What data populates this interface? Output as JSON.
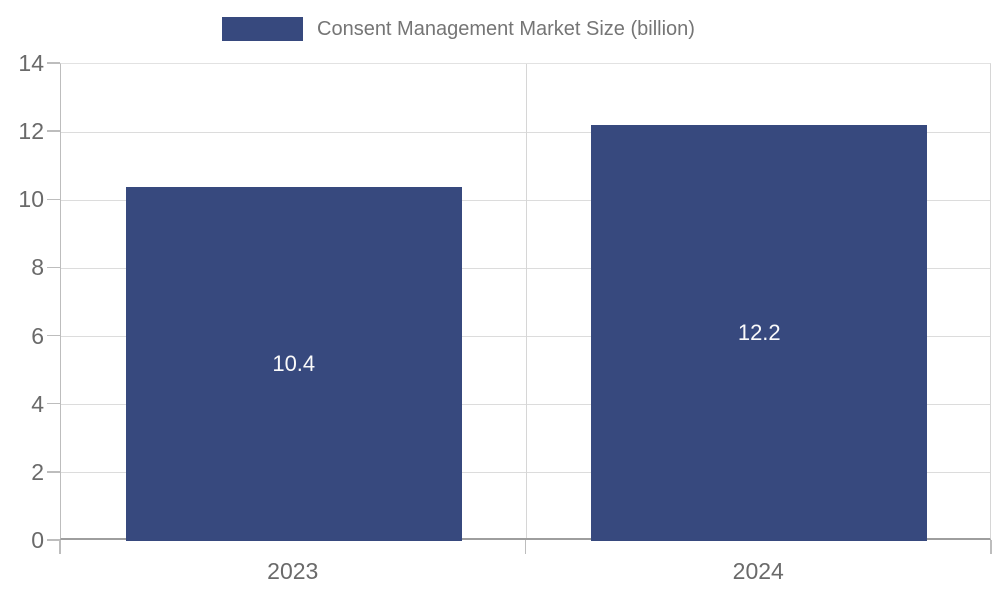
{
  "chart_data": {
    "type": "bar",
    "title": "Consent Management Market Size (billion)",
    "categories": [
      "2023",
      "2024"
    ],
    "values": [
      10.4,
      12.2
    ],
    "value_labels": [
      "10.4",
      "12.2"
    ],
    "xlabel": "",
    "ylabel": "",
    "ylim": [
      0,
      14
    ],
    "yticks": [
      0,
      2,
      4,
      6,
      8,
      10,
      12,
      14
    ],
    "grid": true,
    "legend_position": "top",
    "bar_label_position": "center-inside"
  },
  "legend": {
    "label": "Consent Management Market Size (billion)"
  },
  "colors": {
    "bar": "#37497e",
    "value_label_text": "#fafafa",
    "grid_line": "#dcdcdc",
    "center_divider": "#d6d6d6",
    "x_axis_line": "#9e9e9e",
    "y_axis_line": "#bdbdbd",
    "tick_mark": "#bdbdbd",
    "tick_label_text": "#6a6a6a",
    "legend_text": "#757575",
    "background": "#ffffff"
  }
}
